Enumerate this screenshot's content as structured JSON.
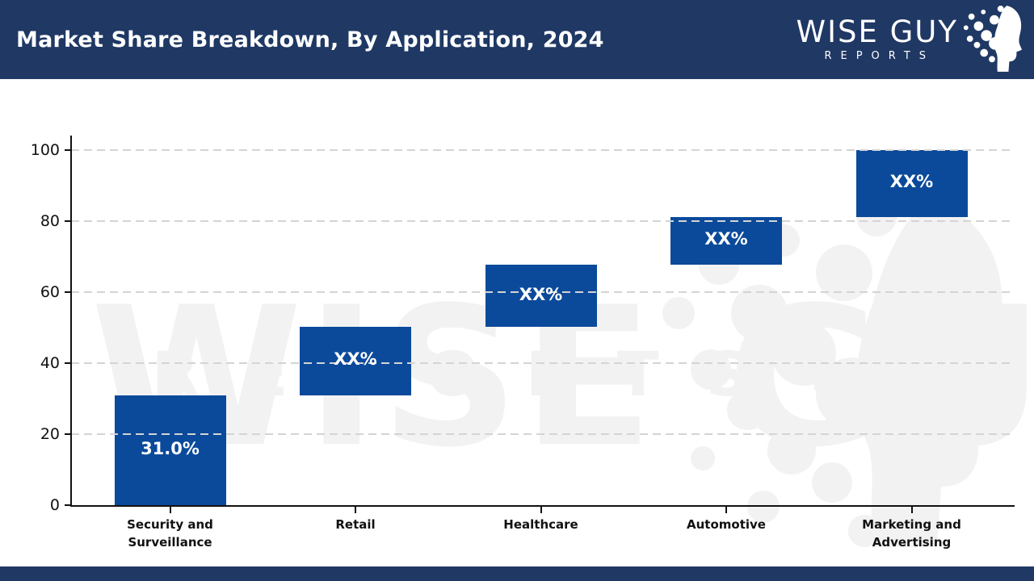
{
  "header": {
    "title": "Market Share Breakdown, By Application, 2024",
    "logo": {
      "line1": "WISE GUY",
      "line2": "REPORTS"
    }
  },
  "watermark": {
    "line1": "WISE GUY",
    "line2": "REPORTS"
  },
  "chart_data": {
    "type": "bar",
    "subtype": "waterfall",
    "title": "Market Share Breakdown, By Application, 2024",
    "categories": [
      [
        "Security and",
        "Surveillance"
      ],
      [
        "Retail"
      ],
      [
        "Healthcare"
      ],
      [
        "Automotive"
      ],
      [
        "Marketing and",
        "Advertising"
      ]
    ],
    "segments": [
      {
        "category": "Security and Surveillance",
        "start": 0,
        "end": 31,
        "label": "31.0%"
      },
      {
        "category": "Retail",
        "start": 31,
        "end": 50.2,
        "label": "XX%"
      },
      {
        "category": "Healthcare",
        "start": 50.2,
        "end": 67.7,
        "label": "XX%"
      },
      {
        "category": "Automotive",
        "start": 67.7,
        "end": 81.2,
        "label": "XX%"
      },
      {
        "category": "Marketing and Advertising",
        "start": 81.2,
        "end": 100,
        "label": "XX%"
      }
    ],
    "y_ticks": [
      0,
      20,
      40,
      60,
      80,
      100
    ],
    "ylim": [
      0,
      104
    ],
    "grid": "dashed-horizontal",
    "legend": "none",
    "bar_color": "#0b4a9b"
  },
  "colors": {
    "header_bg": "#1f3864",
    "footer_bg": "#1f3864",
    "bar": "#0b4a9b",
    "grid": "#d4d4d4",
    "axis": "#111111",
    "watermark": "#f2f2f2",
    "title_text": "#ffffff",
    "value_label_text": "#ffffff"
  }
}
